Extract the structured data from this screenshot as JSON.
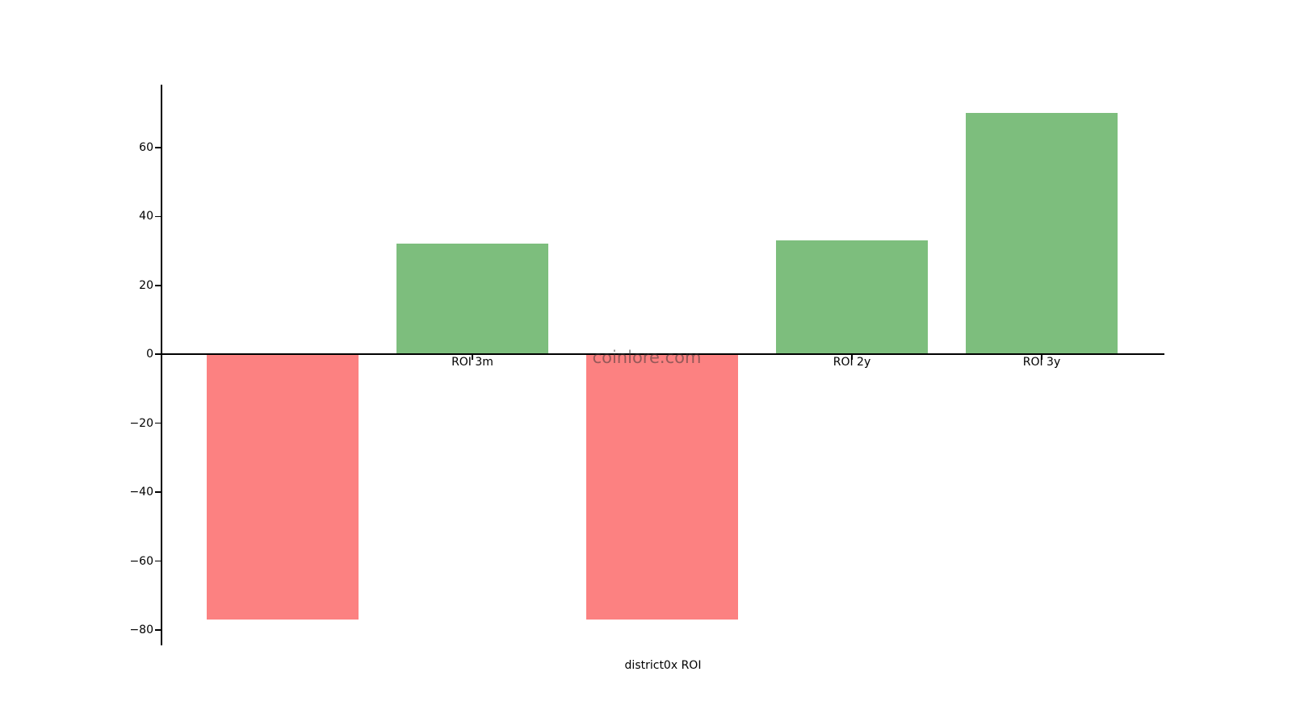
{
  "figure": {
    "background": "#ffffff",
    "axis_color": "#000000",
    "tick_label_color": "#000000"
  },
  "watermark": {
    "text": "coinlore.com",
    "color": "#333333",
    "opacity": 0.5
  },
  "chart_data": {
    "type": "bar",
    "title": "",
    "xlabel": "district0x ROI",
    "ylabel": "",
    "categories": [
      "",
      "ROI 3m",
      "",
      "ROI 2y",
      "ROI 3y"
    ],
    "values": [
      -77,
      32,
      -77,
      33,
      70
    ],
    "bar_colors": [
      "#fc8181",
      "#7dbe7d",
      "#fc8181",
      "#7dbe7d",
      "#7dbe7d"
    ],
    "positive_color": "#7dbe7d",
    "negative_color": "#fc8181",
    "y_ticks": [
      60,
      40,
      20,
      0,
      -20,
      -40,
      -60,
      -80
    ],
    "y_tick_labels": [
      "60",
      "40",
      "20",
      "0",
      "−20",
      "−40",
      "−60",
      "−80"
    ],
    "ylim": [
      -84.4,
      78.2
    ],
    "grid": false,
    "legend": null,
    "annotations": [
      "coinlore.com"
    ]
  }
}
